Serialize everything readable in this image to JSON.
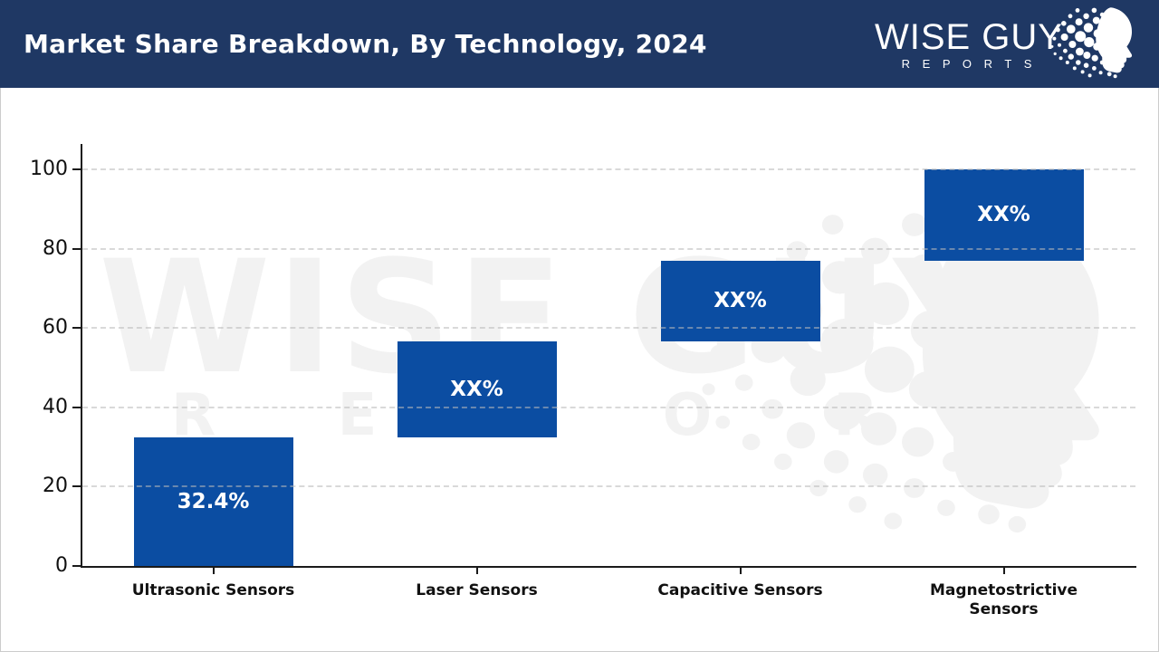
{
  "header": {
    "title": "Market Share Breakdown, By Technology, 2024",
    "logo": {
      "brand_line1": "WISE GUY",
      "brand_line2": "R E P O R T S"
    }
  },
  "watermark": {
    "line1": "WISE GUY",
    "line2": "R E P O R T S"
  },
  "colors": {
    "header_bg": "#1f3864",
    "bar": "#0b4da2",
    "bar_label": "#ffffff",
    "axis": "#1a1a1a",
    "watermark": "#f2f2f2"
  },
  "chart_data": {
    "type": "bar",
    "subtype": "waterfall",
    "title": "Market Share Breakdown, By Technology, 2024",
    "categories": [
      "Ultrasonic Sensors",
      "Laser Sensors",
      "Capacitive Sensors",
      "Magnetostrictive Sensors"
    ],
    "bars": [
      {
        "category": "Ultrasonic Sensors",
        "start": 0,
        "end": 32.4,
        "label": "32.4%"
      },
      {
        "category": "Laser Sensors",
        "start": 32.4,
        "end": 56.7,
        "label": "XX%"
      },
      {
        "category": "Capacitive Sensors",
        "start": 56.7,
        "end": 77.0,
        "label": "XX%"
      },
      {
        "category": "Magnetostrictive Sensors",
        "start": 77.0,
        "end": 100.0,
        "label": "XX%"
      }
    ],
    "ylim": [
      0,
      106.5
    ],
    "yticks": [
      0,
      20,
      40,
      60,
      80,
      100
    ],
    "xlabel": "",
    "ylabel": "",
    "grid": {
      "horizontal": true,
      "style": "dashed"
    },
    "legend": "none"
  }
}
